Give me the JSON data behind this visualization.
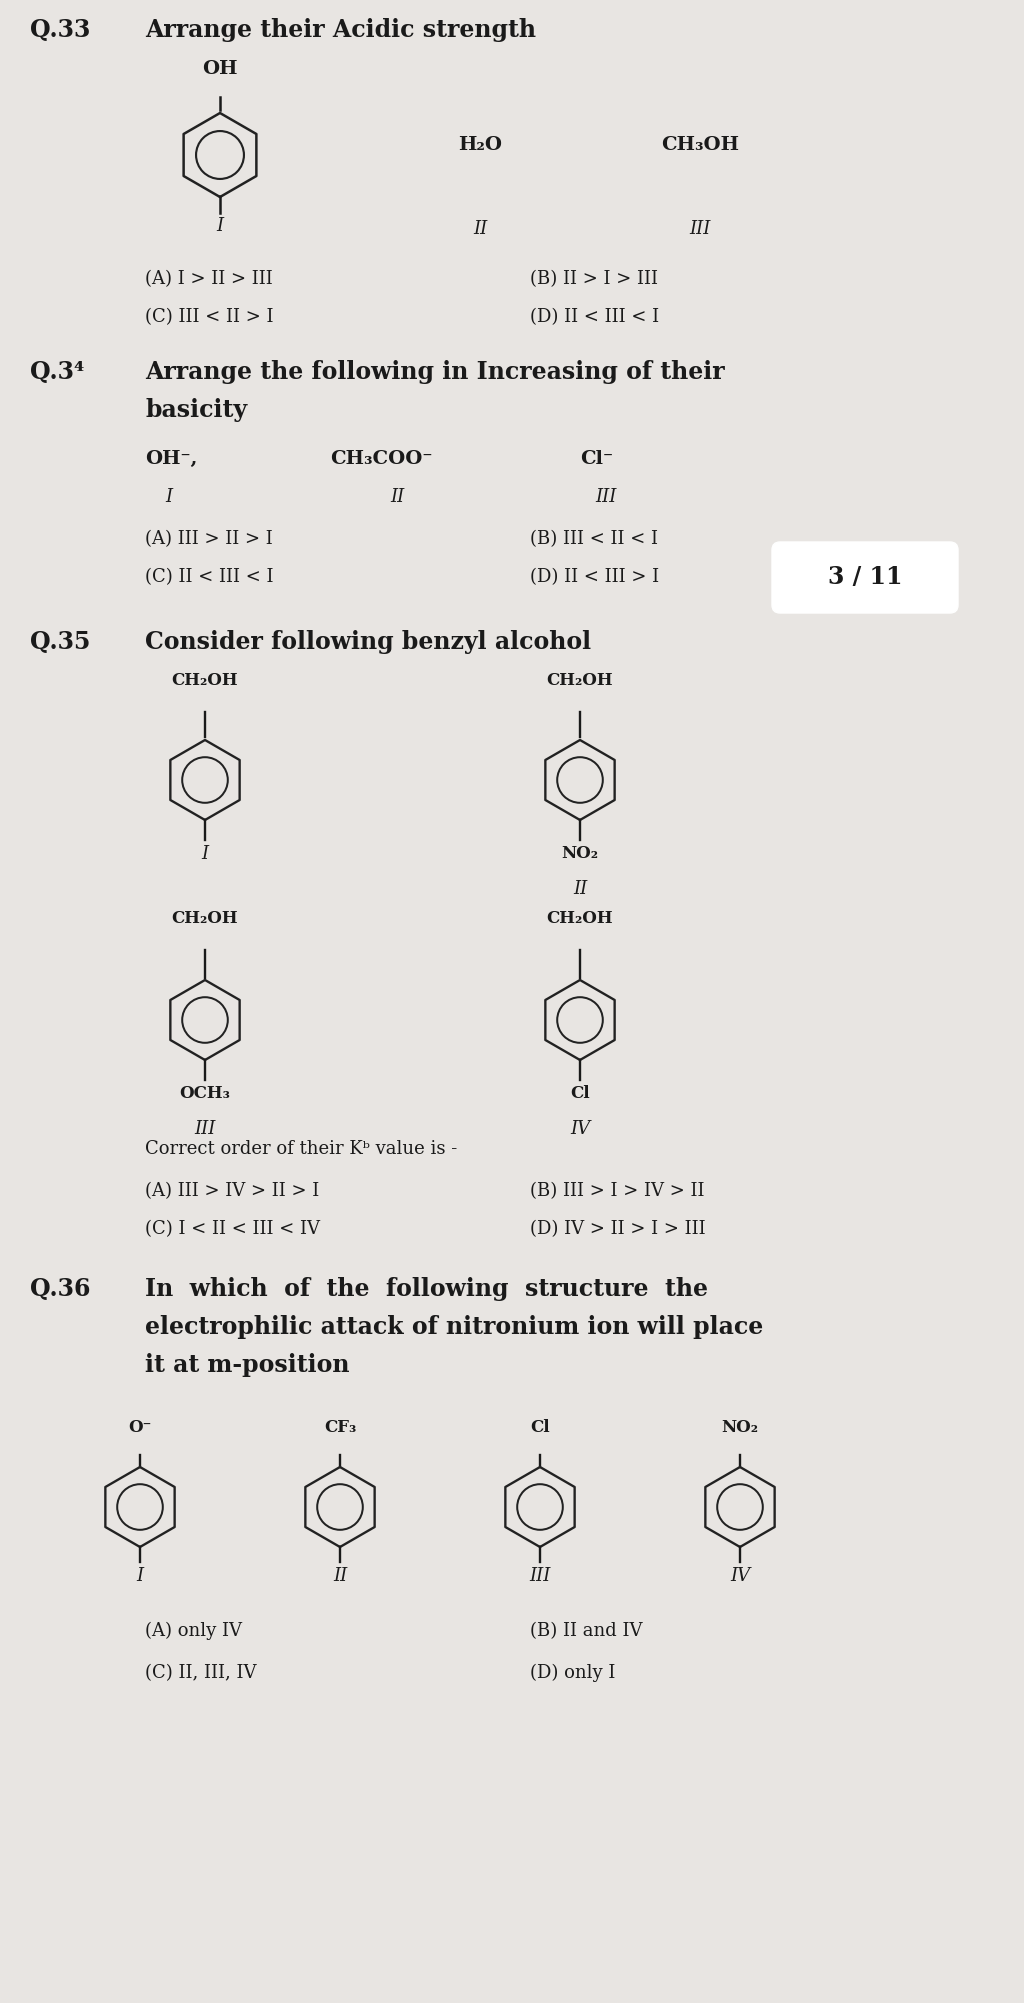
{
  "bg_color": "#e8e5e2",
  "text_color": "#1a1a1a",
  "fs_title": 17,
  "fs_body": 15,
  "fs_small": 13,
  "fs_chem": 14,
  "q33_label": "Q.33",
  "q33_title": "Arrange their Acidic strength",
  "q33_OH": "OH",
  "q33_H2O": "H₂O",
  "q33_CH3OH": "CH₃OH",
  "q33_I": "I",
  "q33_II": "II",
  "q33_III": "III",
  "q33_A": "(A) I > II > III",
  "q33_B": "(B) II > I > III",
  "q33_C": "(C) III < II > I",
  "q33_D": "(D) II < III < I",
  "q34_label": "Q.3⁴",
  "q34_title1": "Arrange the following in Increasing of their",
  "q34_title2": "basicity",
  "q34_OH": "OH⁻,",
  "q34_CH3COO": "CH₃COO⁻",
  "q34_Cl": "Cl⁻",
  "q34_I": "I",
  "q34_II": "II",
  "q34_III": "III",
  "q34_A": "(A) III > II > I",
  "q34_B": "(B) III < II < I",
  "q34_C": "(C) II < III < I",
  "q34_D": "(D) II < III > I",
  "q34_badge": "3 / 11",
  "q35_label": "Q.35",
  "q35_title": "Consider following benzyl alcohol",
  "q35_CH2OH": "CH₂OH",
  "q35_NO2": "NO₂",
  "q35_OCH3": "OCH₃",
  "q35_Cl": "Cl",
  "q35_I": "I",
  "q35_II": "II",
  "q35_III": "III",
  "q35_IV": "IV",
  "q35_correct": "Correct order of their Kᵇ value is -",
  "q35_A": "(A) III > IV > II > I",
  "q35_B": "(B) III > I > IV > II",
  "q35_C": "(C) I < II < III < IV",
  "q35_D": "(D) IV > II > I > III",
  "q36_label": "Q.36",
  "q36_title1": "In  which  of  the  following  structure  the",
  "q36_title2": "electrophilic attack of nitronium ion will place",
  "q36_title3": "it at m-position",
  "q36_O": "O⁻",
  "q36_CF3": "CF₃",
  "q36_Cl": "Cl",
  "q36_NO2": "NO₂",
  "q36_I": "I",
  "q36_II": "II",
  "q36_III": "III",
  "q36_IV": "IV",
  "q36_A": "(A) only IV",
  "q36_B": "(B) II and IV",
  "q36_C": "(C) II, III, IV",
  "q36_D": "(D) only I"
}
